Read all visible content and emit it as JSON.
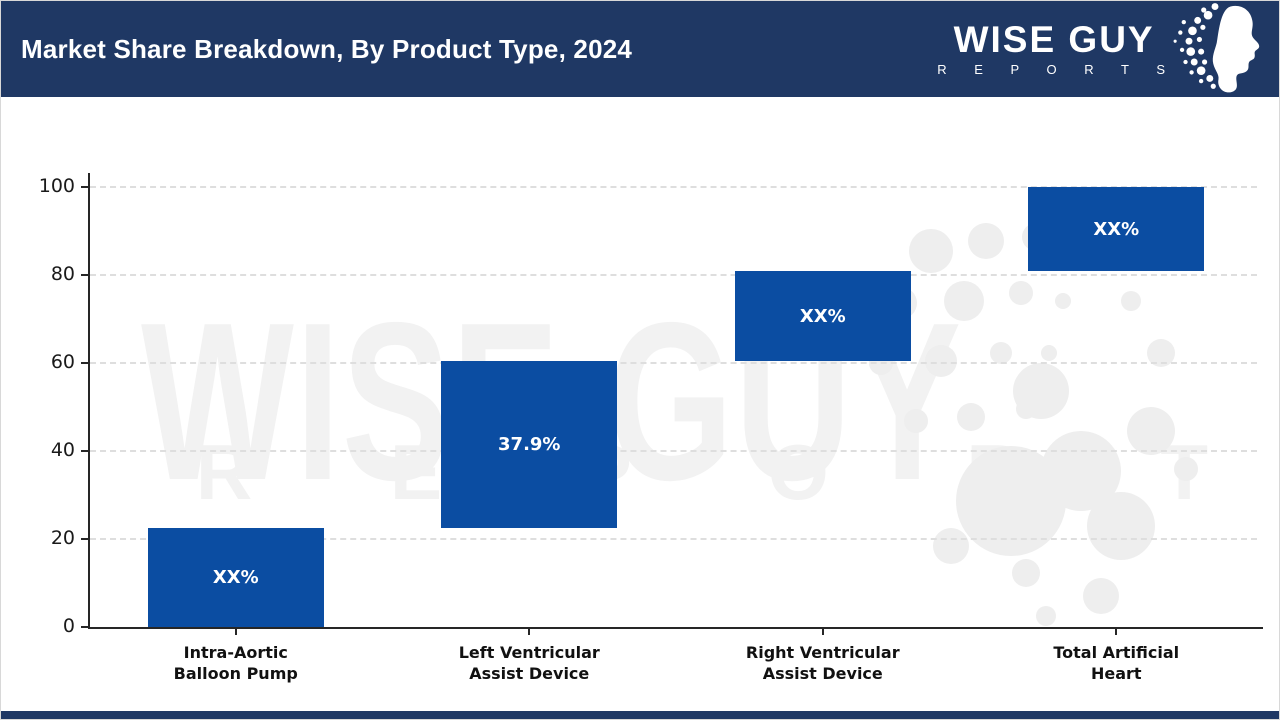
{
  "header": {
    "title": "Market Share Breakdown, By Product Type, 2024",
    "logo": {
      "line1": "WISE GUY",
      "line2": "R E P O R T S"
    }
  },
  "watermark": {
    "line1": "WISE GUY",
    "line2": "R E P O R T S"
  },
  "colors": {
    "header_bg": "#1f3864",
    "bar": "#0b4da2",
    "grid": "#dedede",
    "axis": "#262626",
    "watermark": "#f2f2f2"
  },
  "chart_data": {
    "type": "bar",
    "subtype": "waterfall",
    "title": "Market Share Breakdown, By Product Type, 2024",
    "categories": [
      "Intra-Aortic\nBalloon Pump",
      "Left Ventricular\nAssist Device",
      "Right Ventricular\nAssist Device",
      "Total Artificial\nHeart"
    ],
    "segments": [
      {
        "label": "XX%",
        "start": 0,
        "end": 22.6
      },
      {
        "label": "37.9%",
        "start": 22.6,
        "end": 60.5
      },
      {
        "label": "XX%",
        "start": 60.5,
        "end": 80.8
      },
      {
        "label": "XX%",
        "start": 80.8,
        "end": 100
      }
    ],
    "yticks": [
      0,
      20,
      40,
      60,
      80,
      100
    ],
    "ylim": [
      0,
      100
    ],
    "xlabel": "",
    "ylabel": "",
    "grid": "dashed-horizontal",
    "legend": "none"
  }
}
